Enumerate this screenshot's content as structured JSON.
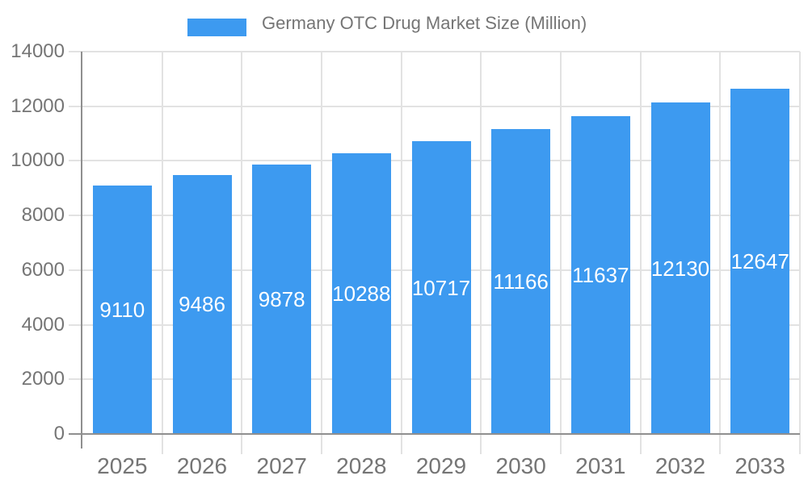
{
  "chart_data": {
    "type": "bar",
    "title": "Germany OTC Drug Market Size (Million)",
    "categories": [
      "2025",
      "2026",
      "2027",
      "2028",
      "2029",
      "2030",
      "2031",
      "2032",
      "2033"
    ],
    "values": [
      9110,
      9486,
      9878,
      10288,
      10717,
      11166,
      11637,
      12130,
      12647
    ],
    "series": [
      {
        "name": "Germany OTC Drug Market Size (Million)",
        "values": [
          9110,
          9486,
          9878,
          10288,
          10717,
          11166,
          11637,
          12130,
          12647
        ]
      }
    ],
    "xlabel": "",
    "ylabel": "",
    "ylim": [
      0,
      14000
    ],
    "yticks": [
      0,
      2000,
      4000,
      6000,
      8000,
      10000,
      12000,
      14000
    ],
    "grid": true,
    "legend_position": "top",
    "value_labels": "inside bars, centered vertically, white",
    "colors": {
      "bar": "#3d9af0",
      "axis": "#8f8f8f",
      "gridline": "#e2e2e2",
      "text": "#757575",
      "bar_label": "#ffffff",
      "background": "#ffffff"
    }
  }
}
